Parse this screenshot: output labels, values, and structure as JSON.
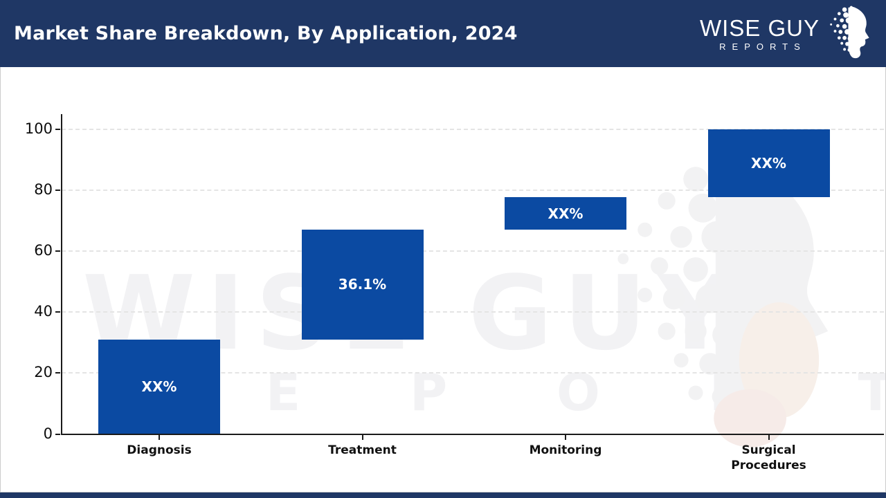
{
  "header": {
    "title": "Market Share Breakdown, By Application, 2024",
    "brand": {
      "name": "WISE GUY",
      "sub": "REPORTS"
    }
  },
  "watermark": {
    "line1": "WISE GUY",
    "line2": "R E P O R T S"
  },
  "colors": {
    "header_bg": "#1f3765",
    "footer_bg": "#1f3765",
    "bar": "#0b4aa2",
    "grid": "#e4e4e4",
    "axis": "#1a1a1a",
    "watermark_text": "#f2f2f4",
    "watermark_shape": "#f2f2f3",
    "bar_label": "#ffffff"
  },
  "chart_data": {
    "type": "bar",
    "subtype": "waterfall",
    "title": "Market Share Breakdown, By Application, 2024",
    "xlabel": "",
    "ylabel": "",
    "categories": [
      "Diagnosis",
      "Treatment",
      "Monitoring",
      "Surgical Procedures"
    ],
    "bars": [
      {
        "category": "Diagnosis",
        "start": 0,
        "end": 31,
        "value": 31,
        "label": "XX%"
      },
      {
        "category": "Treatment",
        "start": 31,
        "end": 67.1,
        "value": 36.1,
        "label": "36.1%"
      },
      {
        "category": "Monitoring",
        "start": 67.1,
        "end": 77.6,
        "value": 10.5,
        "label": "XX%"
      },
      {
        "category": "Surgical Procedures",
        "start": 77.6,
        "end": 100,
        "value": 22.4,
        "label": "XX%"
      }
    ],
    "yticks": [
      0,
      20,
      40,
      60,
      80,
      100
    ],
    "ylim": [
      0,
      105
    ],
    "grid": "horizontal-dashed",
    "legend": "none",
    "bar_color": "#0b4aa2"
  }
}
